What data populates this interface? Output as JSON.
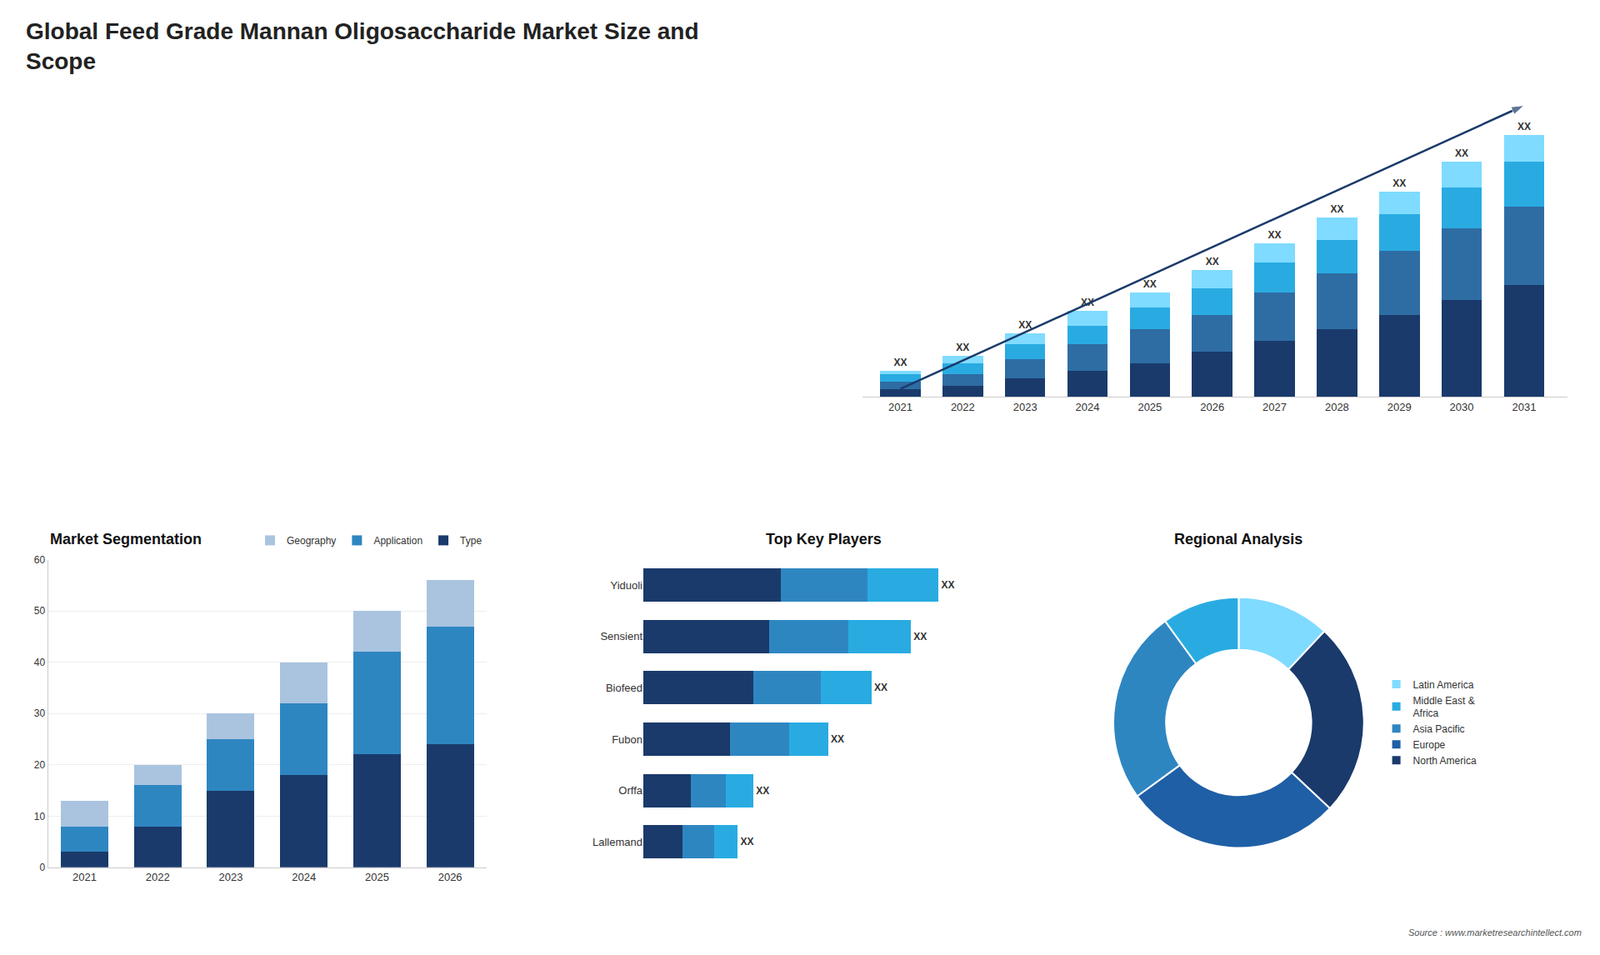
{
  "title": "Global Feed Grade Mannan Oligosaccharide Market Size and\nScope",
  "annotations": [
    "Source : www.marketresearchintellect.com"
  ],
  "chart_data": [
    {
      "type": "bar",
      "stacked": true,
      "categories": [
        "2021",
        "2022",
        "2023",
        "2024",
        "2025",
        "2026",
        "2027",
        "2028",
        "2029",
        "2030",
        "2031"
      ],
      "series": [
        {
          "color": "#1a3a6b",
          "values": [
            2,
            3,
            5,
            7,
            9,
            12,
            15,
            18,
            22,
            26,
            30
          ]
        },
        {
          "color": "#2e6da4",
          "values": [
            2,
            3,
            5,
            7,
            9,
            10,
            13,
            15,
            17,
            19,
            21
          ]
        },
        {
          "color": "#29abe2",
          "values": [
            2,
            3,
            4,
            5,
            6,
            7,
            8,
            9,
            10,
            11,
            12
          ]
        },
        {
          "color": "#7fdbff",
          "values": [
            1,
            2,
            3,
            4,
            4,
            5,
            5,
            6,
            6,
            7,
            7
          ]
        },
        {
          "type": "line",
          "color": "#1a3a6b",
          "marker": "arrow",
          "values": [
            2.1,
            null,
            null,
            null,
            null,
            null,
            null,
            null,
            null,
            null,
            78
          ]
        }
      ],
      "annotations": [
        {
          "category": "2021",
          "text": "XX"
        },
        {
          "category": "2022",
          "text": "XX"
        },
        {
          "category": "2023",
          "text": "XX"
        },
        {
          "category": "2024",
          "text": "XX"
        },
        {
          "category": "2025",
          "text": "XX"
        },
        {
          "category": "2026",
          "text": "XX"
        },
        {
          "category": "2027",
          "text": "XX"
        },
        {
          "category": "2028",
          "text": "XX"
        },
        {
          "category": "2029",
          "text": "XX"
        },
        {
          "category": "2030",
          "text": "XX"
        },
        {
          "category": "2031",
          "text": "XX"
        }
      ],
      "ylim": [
        0,
        94.5
      ],
      "tick_labels": "x",
      "grid": false
    },
    {
      "type": "bar",
      "stacked": true,
      "title": "Market Segmentation",
      "categories": [
        "2021",
        "2022",
        "2023",
        "2024",
        "2025",
        "2026"
      ],
      "series": [
        {
          "name": "Type",
          "color": "#1a3a6b",
          "values": [
            3,
            8,
            15,
            18,
            22,
            24
          ]
        },
        {
          "name": "Application",
          "color": "#2e86c1",
          "values": [
            5,
            8,
            10,
            14,
            20,
            23
          ]
        },
        {
          "name": "Geography",
          "color": "#aac4e0",
          "values": [
            5,
            4,
            5,
            8,
            8,
            9
          ]
        }
      ],
      "ylim": [
        0,
        60
      ],
      "yticks": [
        0,
        10,
        20,
        30,
        40,
        50,
        60
      ],
      "grid": true,
      "legend": "upper right"
    },
    {
      "type": "bar",
      "stacked": true,
      "orientation": "horizontal",
      "title": "Top Key Players",
      "categories": [
        "Yiduoli",
        "Sensient",
        "Biofeed",
        "Fubon",
        "Orffa",
        "Lallemand"
      ],
      "series": [
        {
          "color": "#1a3a6b",
          "values": [
            35,
            32,
            28,
            22,
            12,
            10
          ]
        },
        {
          "color": "#2e86c1",
          "values": [
            22,
            20,
            17,
            15,
            9,
            8
          ]
        },
        {
          "color": "#29abe2",
          "values": [
            18,
            16,
            13,
            10,
            7,
            6
          ]
        }
      ],
      "annotations": [
        {
          "category": "Yiduoli",
          "text": "XX"
        },
        {
          "category": "Sensient",
          "text": "XX"
        },
        {
          "category": "Biofeed",
          "text": "XX"
        },
        {
          "category": "Fubon",
          "text": "XX"
        },
        {
          "category": "Orffa",
          "text": "XX"
        },
        {
          "category": "Lallemand",
          "text": "XX"
        }
      ],
      "xlim": [
        0,
        91.5
      ],
      "tick_labels": "y",
      "grid": false
    },
    {
      "type": "donut",
      "title": "Regional Analysis",
      "categories": [
        "Latin America",
        "Middle East &\nAfrica",
        "Asia Pacific",
        "Europe",
        "North America"
      ],
      "values": [
        12,
        10,
        25,
        28,
        25
      ],
      "colors": [
        "#7fdbff",
        "#29abe2",
        "#2e86c1",
        "#1f5fa6",
        "#1a3a6b"
      ],
      "legend": "right"
    }
  ]
}
